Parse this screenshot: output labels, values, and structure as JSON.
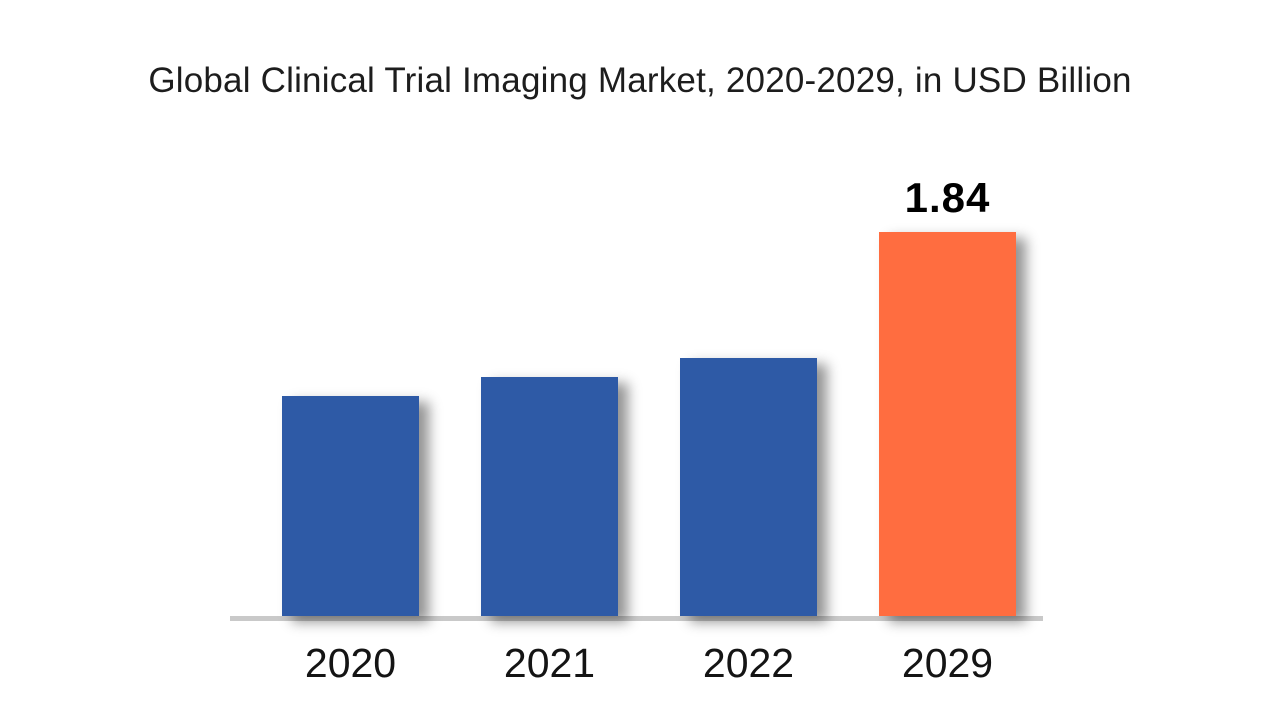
{
  "chart_data": {
    "type": "bar",
    "title": "Global Clinical Trial Imaging Market, 2020-2029, in USD Billion",
    "categories": [
      "2020",
      "2021",
      "2022",
      "2029"
    ],
    "values": [
      0.92,
      1.0,
      1.08,
      1.84
    ],
    "data_labels": [
      null,
      null,
      null,
      "1.84"
    ],
    "bar_colors": [
      "#2E5AA6",
      "#2E5AA6",
      "#2E5AA6",
      "#FF6D40"
    ],
    "xlabel": "",
    "ylabel": "",
    "ylim": [
      0,
      1.84
    ],
    "grid": false,
    "legend": null,
    "y_axis_visible": false,
    "x_axis_line_color": "#C9C9C9",
    "title_color": "#1D1D1D",
    "tick_label_color": "#141414",
    "data_label_color": "#000000",
    "background_color": "#FFFFFF"
  }
}
